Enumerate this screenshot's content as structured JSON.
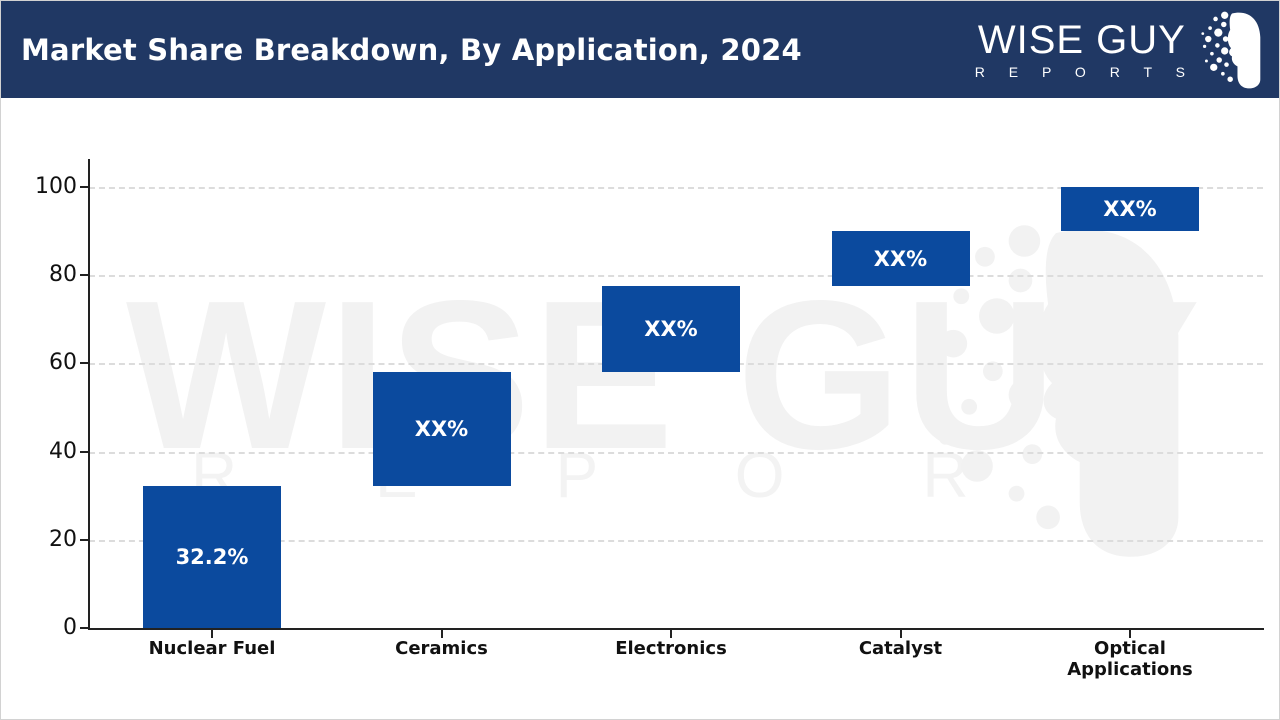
{
  "header": {
    "title": "Market Share Breakdown, By Application, 2024",
    "bg_color": "#203864",
    "logo": {
      "line1": "WISE GUY",
      "line2": "R E P O R T S"
    }
  },
  "watermark": {
    "line1": "WISE GUY",
    "line2": "R E P O R T S"
  },
  "chart_data": {
    "type": "bar",
    "subtype": "waterfall",
    "title": "Market Share Breakdown, By Application, 2024",
    "xlabel": "",
    "ylabel": "",
    "ylim": [
      0,
      106
    ],
    "yticks": [
      0,
      20,
      40,
      60,
      80,
      100
    ],
    "grid": "horizontal-dashed",
    "legend": "none",
    "bar_color": "#0b4a9e",
    "bar_label_color": "#ffffff",
    "categories": [
      "Nuclear Fuel",
      "Ceramics",
      "Electronics",
      "Catalyst",
      "Optical Applications"
    ],
    "segments": [
      {
        "category": "Nuclear Fuel",
        "start": 0,
        "end": 32.2,
        "value": 32.2,
        "label": "32.2%"
      },
      {
        "category": "Ceramics",
        "start": 32.2,
        "end": 58.0,
        "value": 25.8,
        "label": "XX%"
      },
      {
        "category": "Electronics",
        "start": 58.0,
        "end": 77.5,
        "value": 19.5,
        "label": "XX%"
      },
      {
        "category": "Catalyst",
        "start": 77.5,
        "end": 90.0,
        "value": 12.5,
        "label": "XX%"
      },
      {
        "category": "Optical Applications",
        "start": 90.0,
        "end": 100.0,
        "value": 10.0,
        "label": "XX%"
      }
    ]
  }
}
